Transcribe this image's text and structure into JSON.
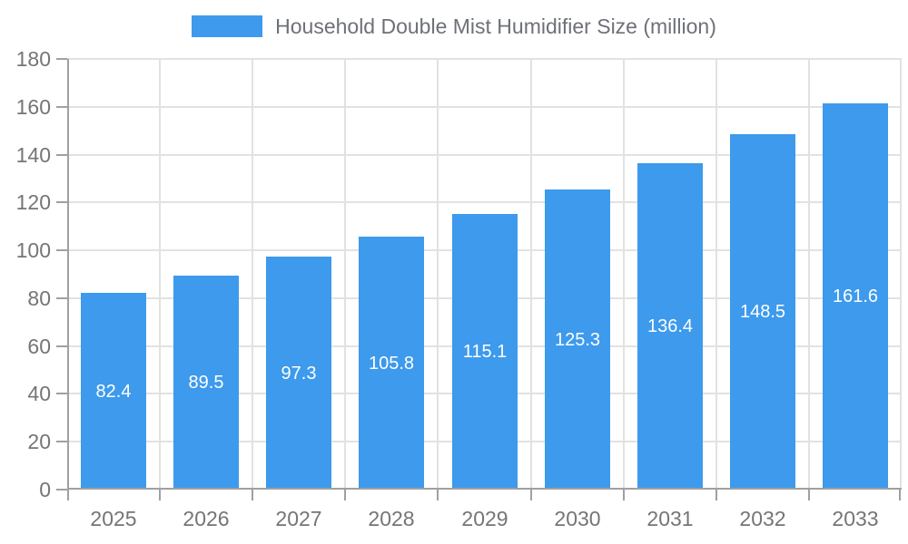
{
  "chart_data": {
    "type": "bar",
    "legend": "Household Double Mist Humidifier Size (million)",
    "categories": [
      "2025",
      "2026",
      "2027",
      "2028",
      "2029",
      "2030",
      "2031",
      "2032",
      "2033"
    ],
    "values": [
      82.4,
      89.5,
      97.3,
      105.8,
      115.1,
      125.3,
      136.4,
      148.5,
      161.6
    ],
    "ylim": [
      0,
      180
    ],
    "ytick_step": 20,
    "grid": true,
    "legend_position": "top-center",
    "value_labels_position": "inside-center",
    "colors": {
      "bar": "#3D9AEC",
      "value_label": "#FFFFFF",
      "axis_text": "#757575",
      "legend_text": "#6E7079",
      "grid_line": "#E2E2E2",
      "axis_line": "#A0A0A0",
      "background": "#FFFFFF"
    }
  }
}
